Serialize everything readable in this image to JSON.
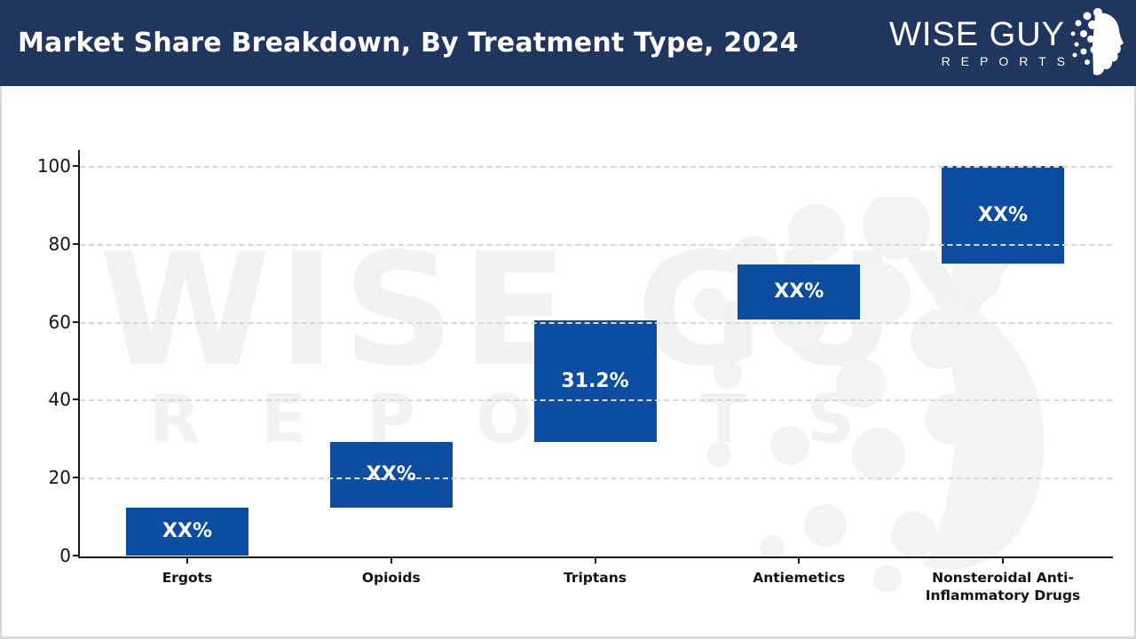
{
  "header": {
    "title": "Market Share Breakdown, By Treatment Type, 2024",
    "bg_color": "#21365f",
    "logo": {
      "line1": "WISE GUY",
      "line2": "REPORTS"
    }
  },
  "watermark": {
    "line1": "WISE GUY",
    "line2": "REPORTS"
  },
  "chart_data": {
    "type": "bar",
    "subtype": "waterfall",
    "title": "Market Share Breakdown, By Treatment Type, 2024",
    "categories": [
      "Ergots",
      "Opioids",
      "Triptans",
      "Antiemetics",
      "Nonsteroidal Anti-Inflammatory Drugs"
    ],
    "segments": [
      {
        "category": "Ergots",
        "start": 0,
        "end": 12.4,
        "label": "XX%"
      },
      {
        "category": "Opioids",
        "start": 12.4,
        "end": 29.2,
        "label": "XX%"
      },
      {
        "category": "Triptans",
        "start": 29.1,
        "end": 60.3,
        "label": "31.2%"
      },
      {
        "category": "Antiemetics",
        "start": 60.6,
        "end": 74.8,
        "label": "XX%"
      },
      {
        "category": "Nonsteroidal Anti-Inflammatory Drugs",
        "start": 74.9,
        "end": 100,
        "label": "XX%"
      }
    ],
    "y_ticks": [
      0,
      20,
      40,
      60,
      80,
      100
    ],
    "ylim": [
      0,
      100
    ],
    "xlabel": "",
    "ylabel": "",
    "grid": "horizontal-dashed",
    "legend": "none",
    "bar_color": "#0d4da0",
    "bar_label_color": "#ffffff",
    "axis_color": "#1a1a1a",
    "gridline_color": "#d8d8d8"
  }
}
